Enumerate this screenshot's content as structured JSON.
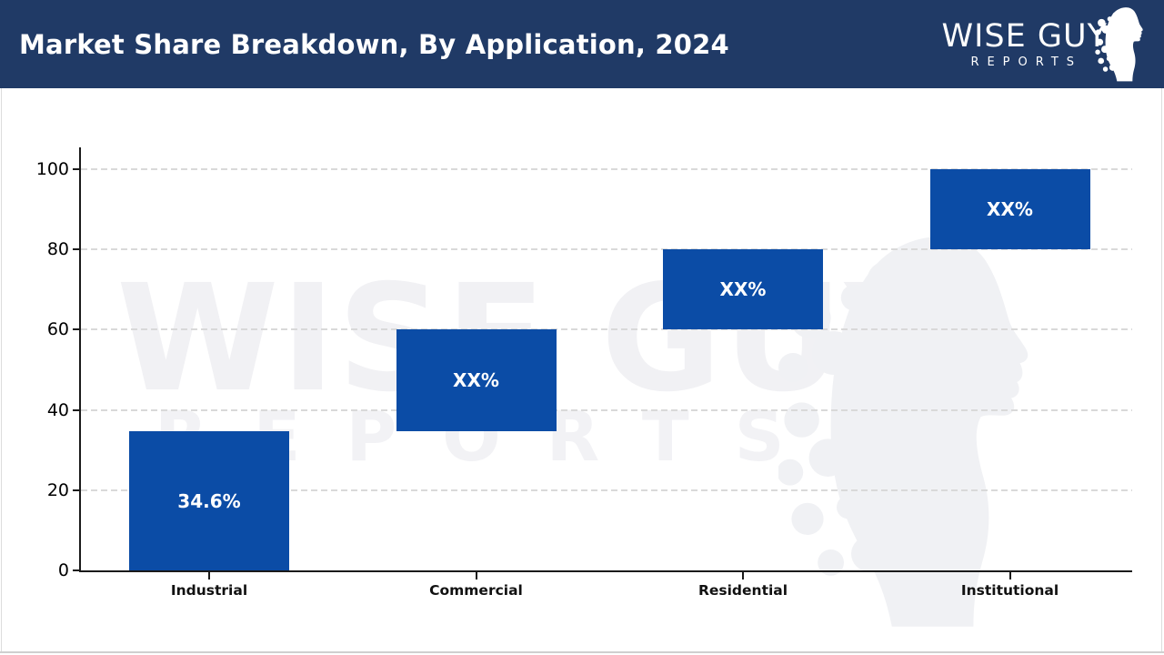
{
  "header": {
    "title": "Market Share Breakdown, By Application, 2024",
    "bg_color": "#203a66",
    "logo": {
      "line1": "WISE GUY",
      "line2": "REPORTS"
    }
  },
  "watermark": {
    "line1": "WISE GUY",
    "line2": "REPORTS"
  },
  "chart_data": {
    "type": "bar",
    "subtype": "waterfall",
    "title": "Market Share Breakdown, By Application, 2024",
    "xlabel": "",
    "ylabel": "",
    "categories": [
      "Industrial",
      "Commercial",
      "Residential",
      "Institutional"
    ],
    "segments": [
      {
        "category": "Industrial",
        "start": 0,
        "end": 34.6,
        "label": "34.6%"
      },
      {
        "category": "Commercial",
        "start": 34.6,
        "end": 60,
        "label": "XX%"
      },
      {
        "category": "Residential",
        "start": 60,
        "end": 80,
        "label": "XX%"
      },
      {
        "category": "Institutional",
        "start": 80,
        "end": 100,
        "label": "XX%"
      }
    ],
    "yticks": [
      0,
      20,
      40,
      60,
      80,
      100
    ],
    "ylim": [
      0,
      105
    ],
    "grid": "horizontal dashed at yticks, hidden at 0",
    "grid_color": "#d9d9d9",
    "bar_color": "#0b4ca6",
    "bar_label_color": "#ffffff",
    "axis_color": "#1a1a1a",
    "legend": "none"
  }
}
